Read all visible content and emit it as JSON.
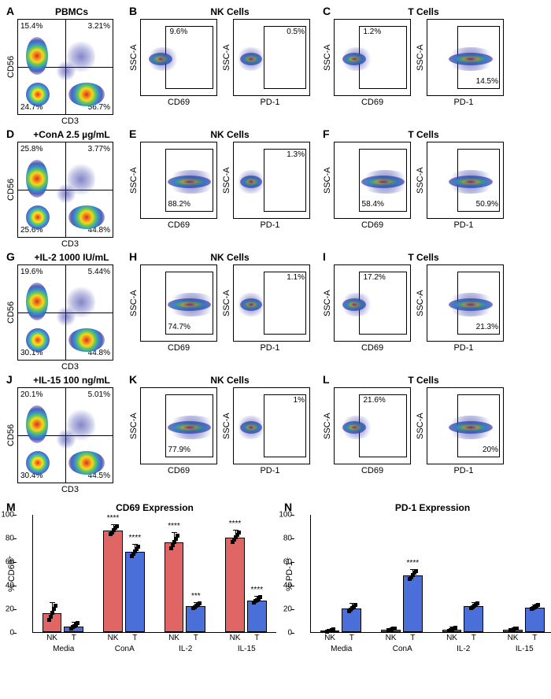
{
  "panels": {
    "A": {
      "title": "PBMCs",
      "y": "CD56",
      "x": "CD3",
      "q": {
        "UL": "15.4%",
        "UR": "3.21%",
        "LL": "24.7%",
        "LR": "56.7%"
      }
    },
    "D": {
      "title": "+ConA 2.5 µg/mL",
      "y": "CD56",
      "x": "CD3",
      "q": {
        "UL": "25.8%",
        "UR": "3.77%",
        "LL": "25.6%",
        "LR": "44.8%"
      }
    },
    "G": {
      "title": "+IL-2 1000 IU/mL",
      "y": "CD56",
      "x": "CD3",
      "q": {
        "UL": "19.6%",
        "UR": "5.44%",
        "LL": "30.1%",
        "LR": "44.8%"
      }
    },
    "J": {
      "title": "+IL-15 100 ng/mL",
      "y": "CD56",
      "x": "CD3",
      "q": {
        "UL": "20.1%",
        "UR": "5.01%",
        "LL": "30.4%",
        "LR": "44.5%"
      }
    },
    "NK": {
      "B": {
        "cd69": "9.6%",
        "pd1": "0.5%"
      },
      "E": {
        "cd69": "88.2%",
        "pd1": "1.3%"
      },
      "H": {
        "cd69": "74.7%",
        "pd1": "1.1%"
      },
      "K": {
        "cd69": "77.9%",
        "pd1": "1%"
      }
    },
    "T": {
      "C": {
        "cd69": "1.2%",
        "pd1": "14.5%"
      },
      "F": {
        "cd69": "58.4%",
        "pd1": "50.9%"
      },
      "I": {
        "cd69": "17.2%",
        "pd1": "21.3%"
      },
      "L": {
        "cd69": "21.6%",
        "pd1": "20%"
      }
    }
  },
  "col_titles": {
    "nk": "NK Cells",
    "t": "T Cells"
  },
  "axis_small": {
    "y": "SSC-A",
    "cd69": "CD69",
    "pd1": "PD-1"
  },
  "barchart_M": {
    "title": "CD69 Expression",
    "ylabel": "% CD69⁺",
    "ylim": [
      0,
      100
    ],
    "ytick_step": 20,
    "groups": [
      "Media",
      "ConA",
      "IL-2",
      "IL-15"
    ],
    "series": [
      "NK",
      "T"
    ],
    "colors": {
      "NK": "#e06666",
      "T": "#4a6fd8"
    },
    "values": {
      "Media": {
        "NK": 16,
        "T": 5
      },
      "ConA": {
        "NK": 86,
        "T": 68
      },
      "IL-2": {
        "NK": 76,
        "T": 22
      },
      "IL-15": {
        "NK": 80,
        "T": 27
      }
    },
    "errors": {
      "Media": {
        "NK": 9,
        "T": 3
      },
      "ConA": {
        "NK": 5,
        "T": 6
      },
      "IL-2": {
        "NK": 8,
        "T": 3
      },
      "IL-15": {
        "NK": 6,
        "T": 3
      }
    },
    "stars": {
      "ConA": {
        "NK": "****",
        "T": "****"
      },
      "IL-2": {
        "NK": "****",
        "T": "***"
      },
      "IL-15": {
        "NK": "****",
        "T": "****"
      }
    }
  },
  "barchart_N": {
    "title": "PD-1 Expression",
    "ylabel": "% PD-1⁺",
    "ylim": [
      0,
      100
    ],
    "ytick_step": 20,
    "groups": [
      "Media",
      "ConA",
      "IL-2",
      "IL-15"
    ],
    "series": [
      "NK",
      "T"
    ],
    "colors": {
      "NK": "#e06666",
      "T": "#4a6fd8"
    },
    "values": {
      "Media": {
        "NK": 1,
        "T": 20
      },
      "ConA": {
        "NK": 2,
        "T": 48
      },
      "IL-2": {
        "NK": 2,
        "T": 22
      },
      "IL-15": {
        "NK": 2,
        "T": 21
      }
    },
    "errors": {
      "Media": {
        "NK": 1,
        "T": 4
      },
      "ConA": {
        "NK": 1,
        "T": 5
      },
      "IL-2": {
        "NK": 2,
        "T": 3
      },
      "IL-15": {
        "NK": 1,
        "T": 2
      }
    },
    "stars": {
      "ConA": {
        "T": "****"
      }
    }
  }
}
